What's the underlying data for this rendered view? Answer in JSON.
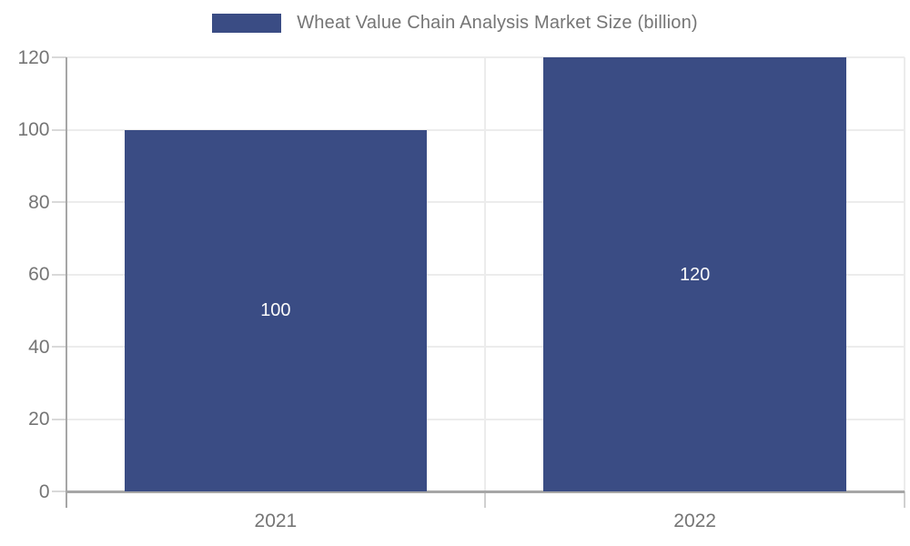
{
  "chart_data": {
    "type": "bar",
    "title": "Wheat Value Chain Analysis Market Size (billion)",
    "categories": [
      "2021",
      "2022"
    ],
    "values": [
      100,
      120
    ],
    "bar_value_labels": [
      "100",
      "120"
    ],
    "xlabel": "",
    "ylabel": "",
    "ylim": [
      0,
      120
    ],
    "yticks": [
      0,
      20,
      40,
      60,
      80,
      100,
      120
    ],
    "grid": true,
    "legend_position": "top",
    "legend_entries": [
      "Wheat Value Chain Analysis Market Size (billion)"
    ],
    "colors": {
      "bar": "#3a4c84",
      "axis_line": "#a6a6a6",
      "gridline": "#ececec",
      "tick_mark": "#d9d9d9",
      "minor_tick": "#d0d0d0",
      "tick_text": "#757575",
      "legend_text": "#757575",
      "value_label_text": "#fafafa",
      "background": "#ffffff"
    }
  }
}
